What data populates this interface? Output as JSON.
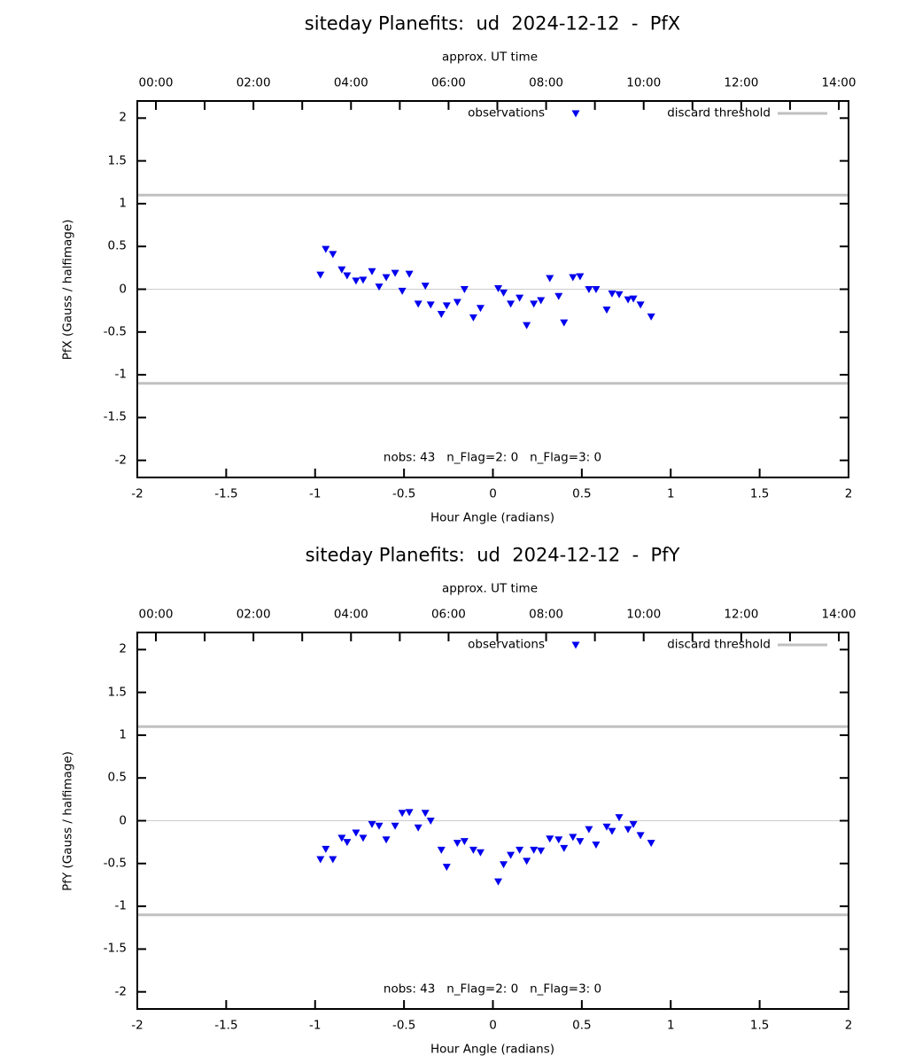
{
  "figure": {
    "background": "#ffffff",
    "nobs": 43,
    "n_flag2": 0,
    "n_flag3": 0
  },
  "colors": {
    "marker": "#0000ee",
    "threshold_line": "#c0c0c0",
    "zero_line": "#cccccc",
    "frame": "#000000",
    "text": "#000000"
  },
  "chart_data": [
    {
      "type": "scatter",
      "title": "siteday Planefits:  ud  2024-12-12  -  PfX",
      "x2label": "approx. UT time",
      "xlabel": "Hour Angle (radians)",
      "ylabel": "PfX (Gauss / halfimage)",
      "xlim": [
        -2,
        2
      ],
      "ylim": [
        -2.2,
        2.2
      ],
      "grid": false,
      "legend_position": "top-inside",
      "x_ticks": [
        -2,
        -1.5,
        -1,
        -0.5,
        0,
        0.5,
        1,
        1.5,
        2
      ],
      "x_tick_labels": [
        "-2",
        "-1.5",
        "-1",
        "-0.5",
        "0",
        "0.5",
        "1",
        "1.5",
        "2"
      ],
      "y_ticks": [
        2,
        1.5,
        1,
        0.5,
        0,
        -0.5,
        -1,
        -1.5,
        -2
      ],
      "y_tick_labels": [
        "2",
        "1.5",
        "1",
        "0.5",
        "0",
        "-0.5",
        "-1",
        "-1.5",
        "-2"
      ],
      "x2_tick_hours": [
        0,
        1,
        2,
        3,
        4,
        5,
        6,
        7,
        8,
        9,
        10,
        11,
        12,
        13,
        14
      ],
      "x2_label_hours": [
        0,
        2,
        4,
        6,
        8,
        10,
        12,
        14
      ],
      "x2_tick_labels": [
        "00:00",
        "02:00",
        "04:00",
        "06:00",
        "08:00",
        "10:00",
        "12:00",
        "14:00"
      ],
      "discard_threshold": [
        1.1,
        -1.1
      ],
      "zero_line": 0,
      "annotation": "nobs: 43   n_Flag=2: 0   n_Flag=3: 0",
      "legend": [
        {
          "label": "observations",
          "marker": "triangle-down"
        },
        {
          "label": "discard threshold",
          "marker": "line"
        }
      ],
      "series": [
        {
          "name": "observations",
          "points": [
            [
              -0.97,
              0.17
            ],
            [
              -0.94,
              0.47
            ],
            [
              -0.9,
              0.41
            ],
            [
              -0.85,
              0.23
            ],
            [
              -0.82,
              0.16
            ],
            [
              -0.77,
              0.1
            ],
            [
              -0.73,
              0.11
            ],
            [
              -0.68,
              0.21
            ],
            [
              -0.64,
              0.03
            ],
            [
              -0.6,
              0.14
            ],
            [
              -0.55,
              0.19
            ],
            [
              -0.51,
              -0.02
            ],
            [
              -0.47,
              0.18
            ],
            [
              -0.42,
              -0.17
            ],
            [
              -0.38,
              0.04
            ],
            [
              -0.35,
              -0.18
            ],
            [
              -0.29,
              -0.29
            ],
            [
              -0.26,
              -0.19
            ],
            [
              -0.2,
              -0.15
            ],
            [
              -0.16,
              0.0
            ],
            [
              -0.11,
              -0.33
            ],
            [
              -0.07,
              -0.22
            ],
            [
              0.03,
              0.01
            ],
            [
              0.06,
              -0.04
            ],
            [
              0.1,
              -0.17
            ],
            [
              0.15,
              -0.1
            ],
            [
              0.19,
              -0.42
            ],
            [
              0.23,
              -0.17
            ],
            [
              0.27,
              -0.13
            ],
            [
              0.32,
              0.13
            ],
            [
              0.37,
              -0.08
            ],
            [
              0.4,
              -0.39
            ],
            [
              0.45,
              0.14
            ],
            [
              0.49,
              0.15
            ],
            [
              0.54,
              0.0
            ],
            [
              0.58,
              0.0
            ],
            [
              0.64,
              -0.24
            ],
            [
              0.67,
              -0.05
            ],
            [
              0.71,
              -0.06
            ],
            [
              0.76,
              -0.12
            ],
            [
              0.79,
              -0.11
            ],
            [
              0.83,
              -0.18
            ],
            [
              0.89,
              -0.32
            ]
          ]
        }
      ]
    },
    {
      "type": "scatter",
      "title": "siteday Planefits:  ud  2024-12-12  -  PfY",
      "x2label": "approx. UT time",
      "xlabel": "Hour Angle (radians)",
      "ylabel": "PfY (Gauss / halfimage)",
      "xlim": [
        -2,
        2
      ],
      "ylim": [
        -2.2,
        2.2
      ],
      "grid": false,
      "legend_position": "top-inside",
      "x_ticks": [
        -2,
        -1.5,
        -1,
        -0.5,
        0,
        0.5,
        1,
        1.5,
        2
      ],
      "x_tick_labels": [
        "-2",
        "-1.5",
        "-1",
        "-0.5",
        "0",
        "0.5",
        "1",
        "1.5",
        "2"
      ],
      "y_ticks": [
        2,
        1.5,
        1,
        0.5,
        0,
        -0.5,
        -1,
        -1.5,
        -2
      ],
      "y_tick_labels": [
        "2",
        "1.5",
        "1",
        "0.5",
        "0",
        "-0.5",
        "-1",
        "-1.5",
        "-2"
      ],
      "x2_tick_hours": [
        0,
        1,
        2,
        3,
        4,
        5,
        6,
        7,
        8,
        9,
        10,
        11,
        12,
        13,
        14
      ],
      "x2_label_hours": [
        0,
        2,
        4,
        6,
        8,
        10,
        12,
        14
      ],
      "x2_tick_labels": [
        "00:00",
        "02:00",
        "04:00",
        "06:00",
        "08:00",
        "10:00",
        "12:00",
        "14:00"
      ],
      "discard_threshold": [
        1.1,
        -1.1
      ],
      "zero_line": 0,
      "annotation": "nobs: 43   n_Flag=2: 0   n_Flag=3: 0",
      "legend": [
        {
          "label": "observations",
          "marker": "triangle-down"
        },
        {
          "label": "discard threshold",
          "marker": "line"
        }
      ],
      "series": [
        {
          "name": "observations",
          "points": [
            [
              -0.97,
              -0.45
            ],
            [
              -0.94,
              -0.33
            ],
            [
              -0.9,
              -0.45
            ],
            [
              -0.85,
              -0.2
            ],
            [
              -0.82,
              -0.25
            ],
            [
              -0.77,
              -0.14
            ],
            [
              -0.73,
              -0.2
            ],
            [
              -0.68,
              -0.04
            ],
            [
              -0.64,
              -0.06
            ],
            [
              -0.6,
              -0.22
            ],
            [
              -0.55,
              -0.06
            ],
            [
              -0.51,
              0.09
            ],
            [
              -0.47,
              0.1
            ],
            [
              -0.42,
              -0.08
            ],
            [
              -0.38,
              0.09
            ],
            [
              -0.35,
              0.0
            ],
            [
              -0.29,
              -0.34
            ],
            [
              -0.26,
              -0.54
            ],
            [
              -0.2,
              -0.26
            ],
            [
              -0.16,
              -0.24
            ],
            [
              -0.11,
              -0.34
            ],
            [
              -0.07,
              -0.37
            ],
            [
              0.03,
              -0.71
            ],
            [
              0.06,
              -0.51
            ],
            [
              0.1,
              -0.4
            ],
            [
              0.15,
              -0.34
            ],
            [
              0.19,
              -0.47
            ],
            [
              0.23,
              -0.34
            ],
            [
              0.27,
              -0.35
            ],
            [
              0.32,
              -0.21
            ],
            [
              0.37,
              -0.22
            ],
            [
              0.4,
              -0.32
            ],
            [
              0.45,
              -0.19
            ],
            [
              0.49,
              -0.24
            ],
            [
              0.54,
              -0.1
            ],
            [
              0.58,
              -0.28
            ],
            [
              0.64,
              -0.07
            ],
            [
              0.67,
              -0.12
            ],
            [
              0.71,
              0.04
            ],
            [
              0.76,
              -0.1
            ],
            [
              0.79,
              -0.04
            ],
            [
              0.83,
              -0.17
            ],
            [
              0.89,
              -0.26
            ]
          ]
        }
      ]
    }
  ]
}
